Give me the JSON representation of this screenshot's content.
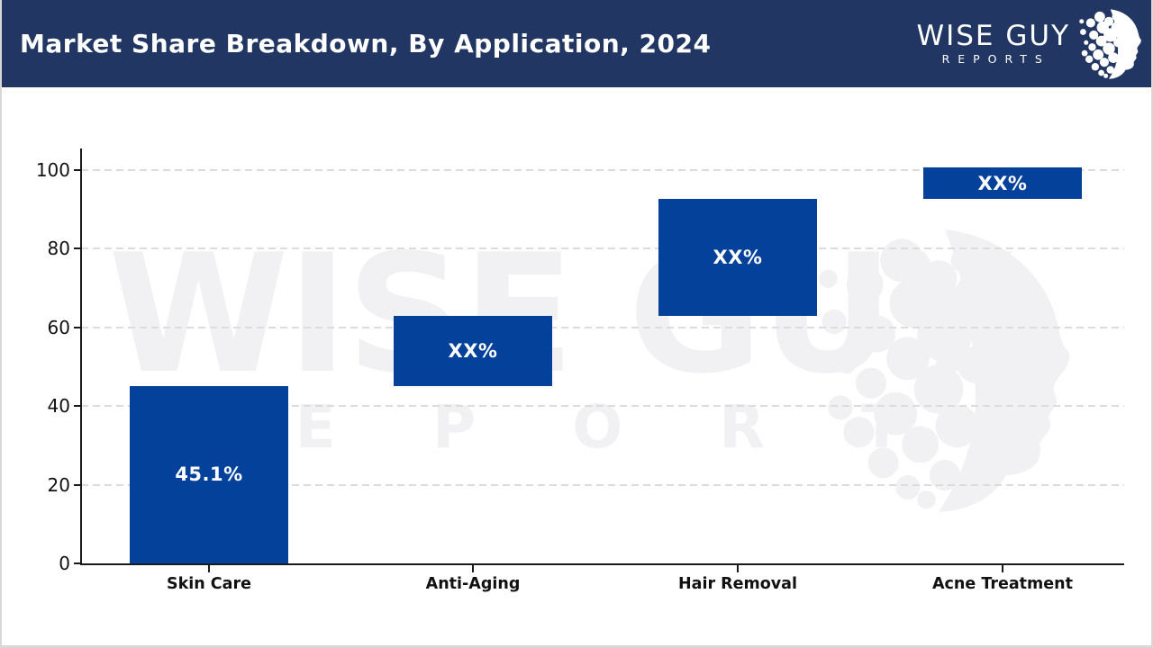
{
  "header": {
    "title": "Market Share Breakdown, By Application, 2024",
    "bg_color": "#213663",
    "logo": {
      "line1": "WISE GUY",
      "line2": "REPORTS"
    }
  },
  "watermark": {
    "line1": "WISE GUY.",
    "line2": "R E P O R T S"
  },
  "chart_data": {
    "type": "bar",
    "subtype": "waterfall",
    "title": "Market Share Breakdown, By Application, 2024",
    "categories": [
      "Skin Care",
      "Anti-Aging",
      "Hair Removal",
      "Acne Treatment"
    ],
    "segments": [
      {
        "category": "Skin Care",
        "start": 0,
        "end": 45.1,
        "label": "45.1%"
      },
      {
        "category": "Anti-Aging",
        "start": 45.1,
        "end": 62.9,
        "label": "XX%"
      },
      {
        "category": "Hair Removal",
        "start": 62.9,
        "end": 92.5,
        "label": "XX%"
      },
      {
        "category": "Acne Treatment",
        "start": 92.5,
        "end": 100.6,
        "label": "XX%"
      }
    ],
    "xlabel": "",
    "ylabel": "",
    "yticks": [
      0,
      20,
      40,
      60,
      80,
      100
    ],
    "ylim": [
      0,
      105.4
    ],
    "grid": "horizontal-dashed",
    "legend": "none",
    "bar_color": "#04419b",
    "bar_label_color": "#ffffff",
    "gridline_color": "#dcdcdc",
    "axis_color": "#1a1a1a"
  }
}
